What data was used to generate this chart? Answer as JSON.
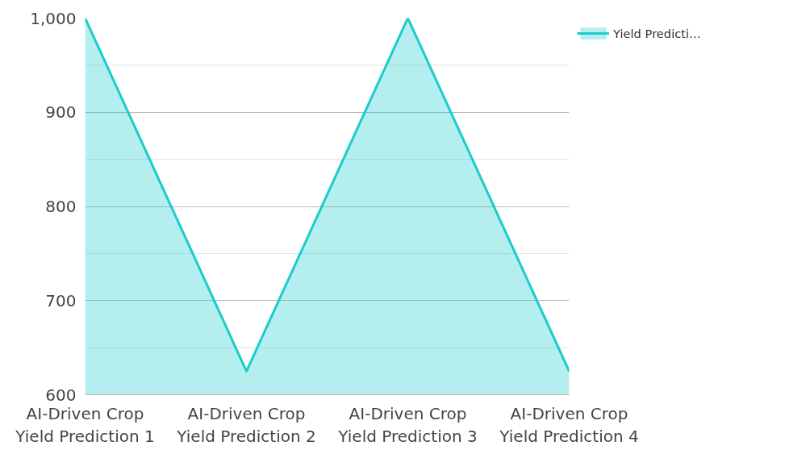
{
  "chart_data": {
    "type": "area",
    "categories": [
      "AI-Driven Crop Yield Prediction 1",
      "AI-Driven Crop Yield Prediction 2",
      "AI-Driven Crop Yield Prediction 3",
      "AI-Driven Crop Yield Prediction 4"
    ],
    "series": [
      {
        "name": "Yield Predicti…",
        "color": "#1ccbcb",
        "values": [
          1000,
          625,
          1000,
          625
        ]
      }
    ],
    "ylim": [
      600,
      1000
    ],
    "yticks": [
      600,
      700,
      800,
      900,
      {
        "value": 1000,
        "label": "1,000"
      }
    ],
    "grid": "y",
    "legend": "top right"
  }
}
